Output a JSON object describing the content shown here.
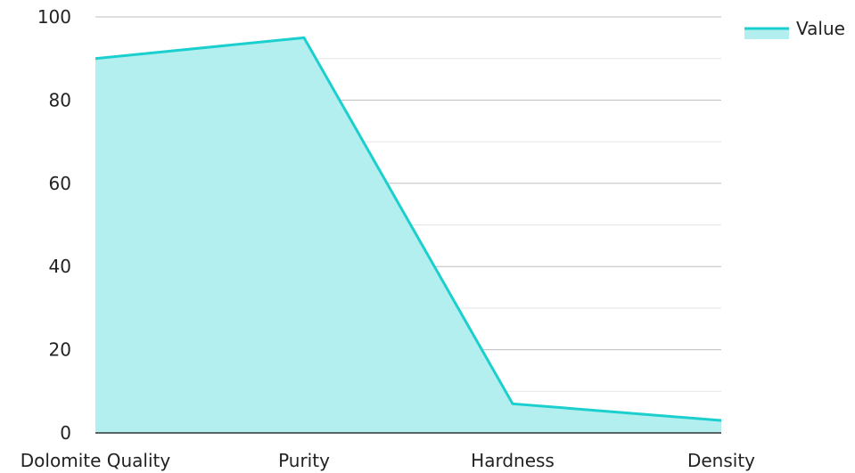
{
  "chart_data": {
    "type": "area",
    "categories": [
      "Dolomite Quality",
      "Purity",
      "Hardness",
      "Density"
    ],
    "series": [
      {
        "name": "Value",
        "values": [
          90,
          95,
          7,
          3
        ]
      }
    ],
    "ylim": [
      0,
      100
    ],
    "yticks": [
      0,
      20,
      40,
      60,
      80,
      100
    ],
    "grid": true,
    "legend": "top-right",
    "colors": {
      "line": "#1ccfcf",
      "fill": "#b2efee",
      "major_grid": "#bdbdbd",
      "minor_grid": "#e3e3e3",
      "axis": "#333333"
    }
  }
}
